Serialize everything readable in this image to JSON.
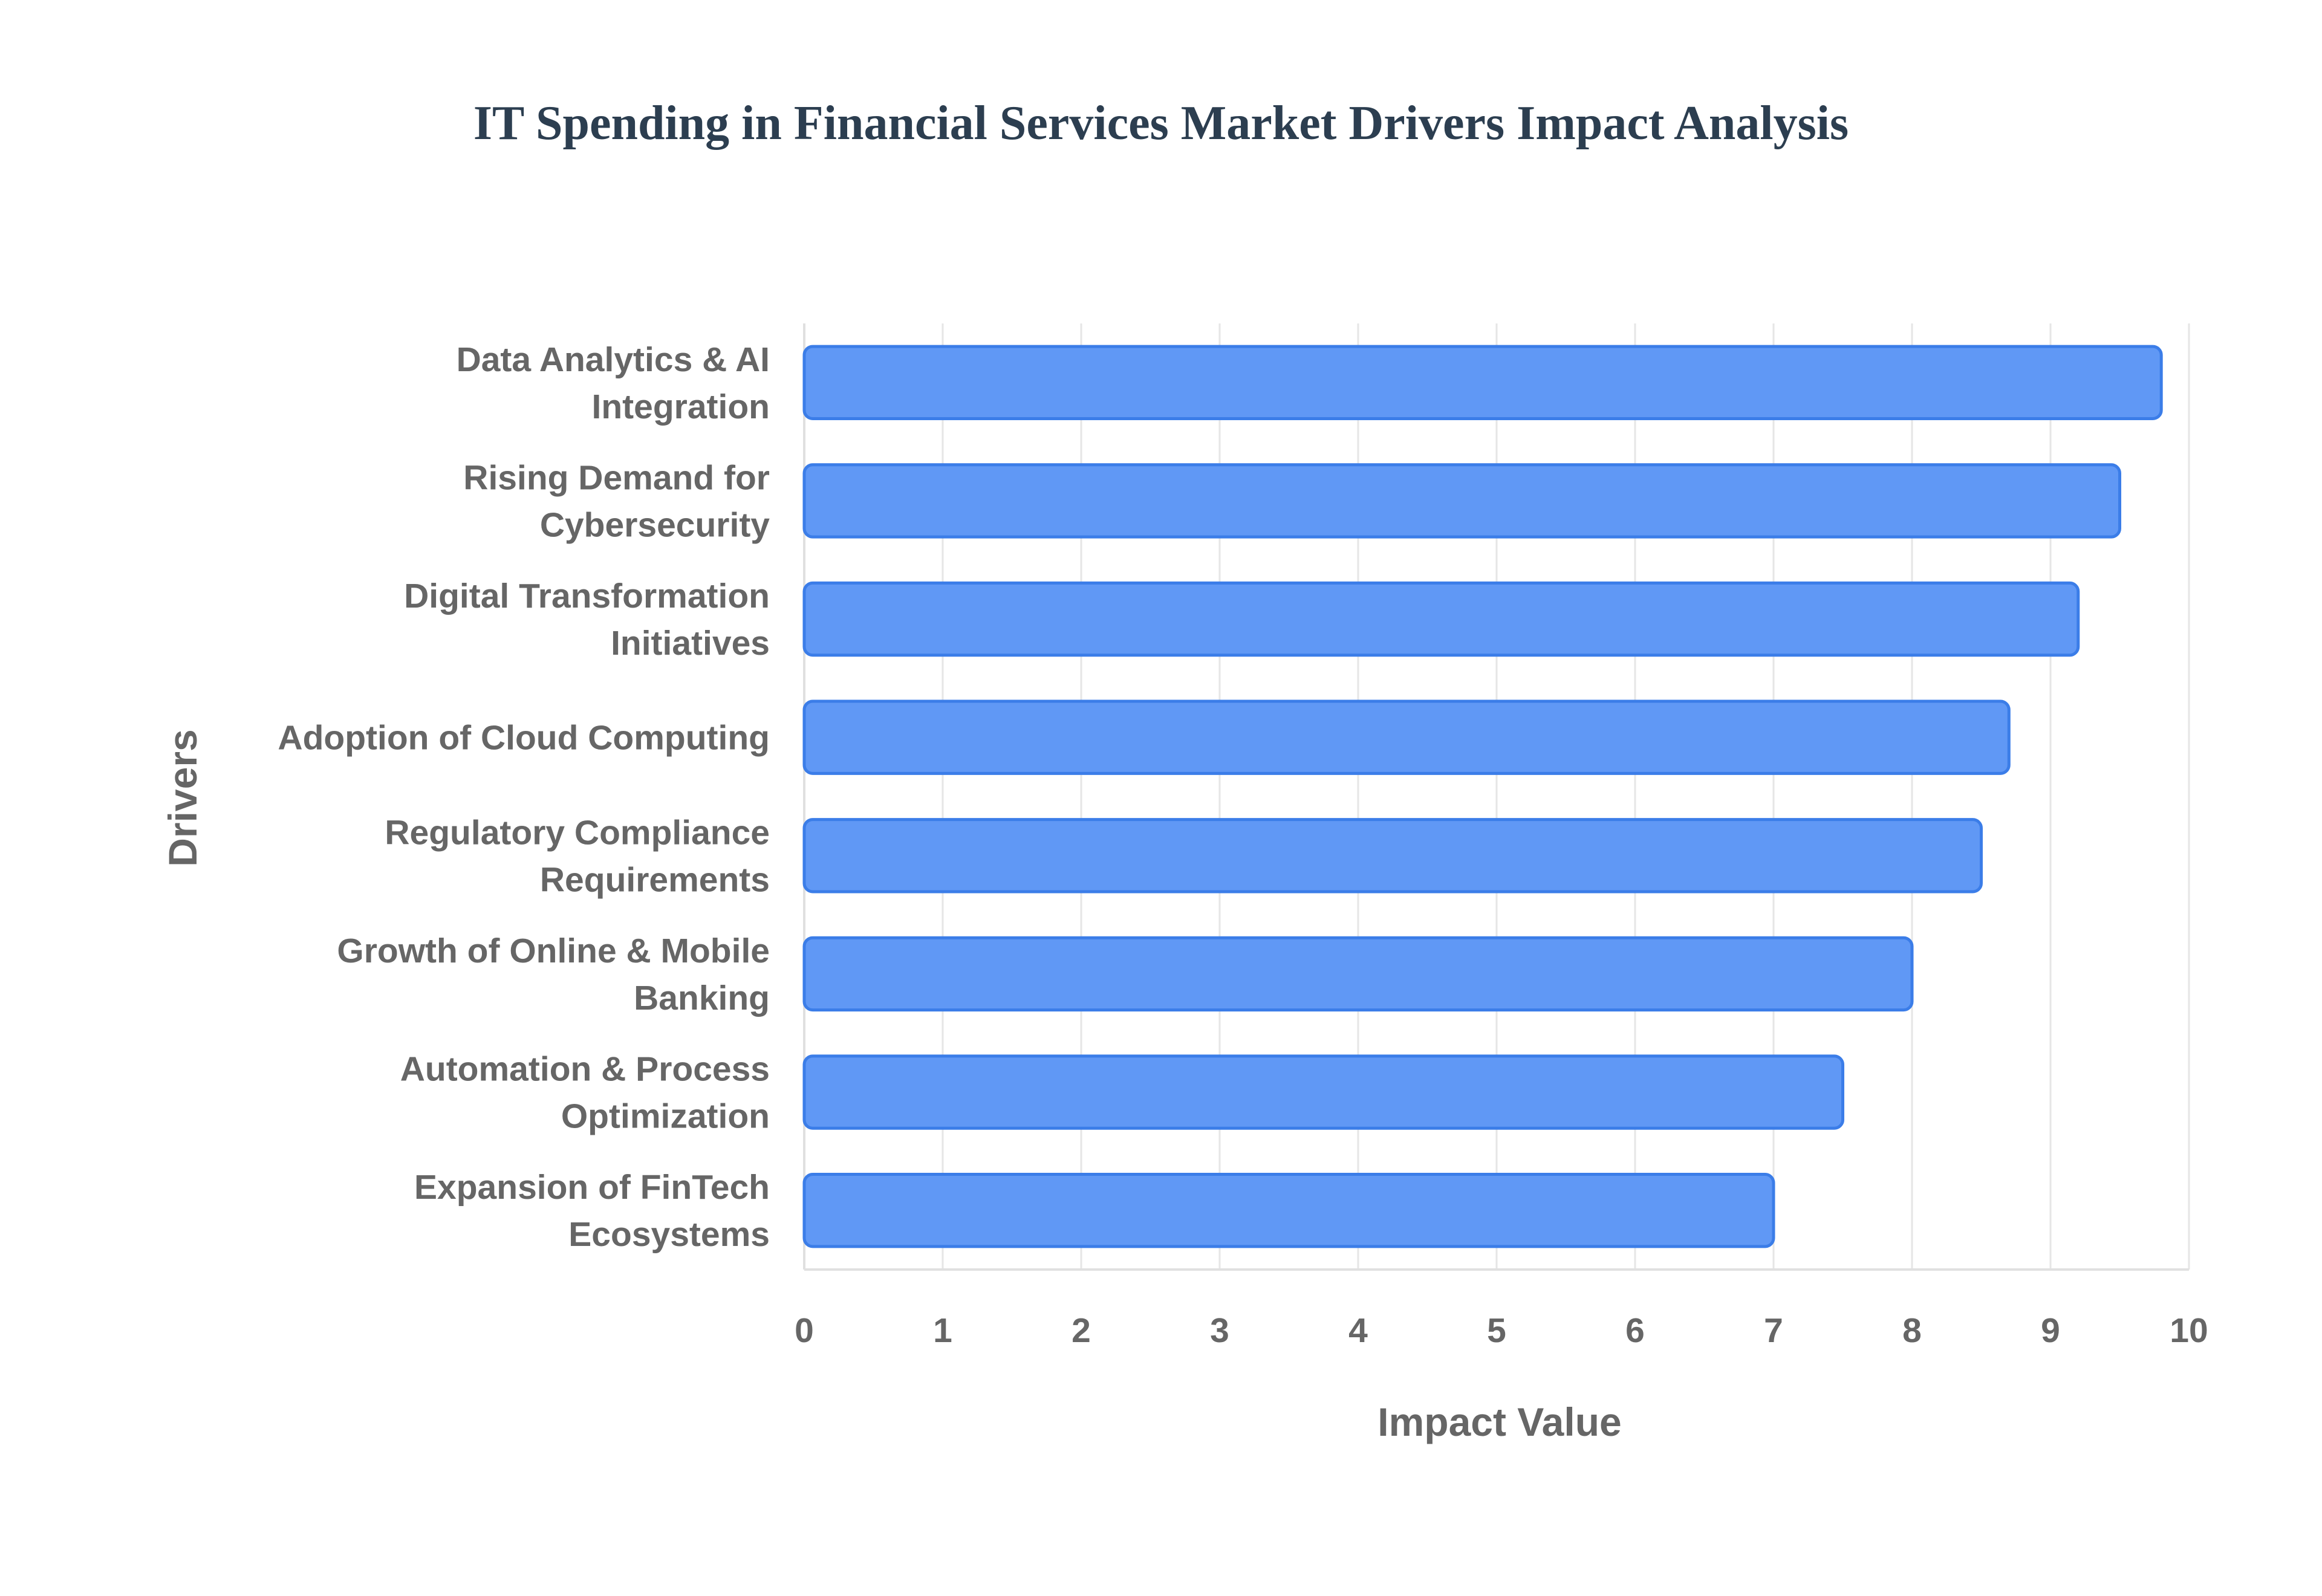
{
  "chart_data": {
    "type": "bar",
    "orientation": "horizontal",
    "title": "IT Spending in Financial Services Market Drivers Impact Analysis",
    "xlabel": "Impact Value",
    "ylabel": "Drivers",
    "xlim": [
      0,
      10
    ],
    "x_ticks": [
      "0",
      "1",
      "2",
      "3",
      "4",
      "5",
      "6",
      "7",
      "8",
      "9",
      "10"
    ],
    "grid": true,
    "categories": [
      {
        "lines": [
          "Data Analytics & AI",
          "Integration"
        ],
        "value": 9.8
      },
      {
        "lines": [
          "Rising Demand for",
          "Cybersecurity"
        ],
        "value": 9.5
      },
      {
        "lines": [
          "Digital Transformation",
          "Initiatives"
        ],
        "value": 9.2
      },
      {
        "lines": [
          "Adoption of Cloud Computing"
        ],
        "value": 8.7
      },
      {
        "lines": [
          "Regulatory Compliance",
          "Requirements"
        ],
        "value": 8.5
      },
      {
        "lines": [
          "Growth of Online & Mobile",
          "Banking"
        ],
        "value": 8.0
      },
      {
        "lines": [
          "Automation & Process",
          "Optimization"
        ],
        "value": 7.5
      },
      {
        "lines": [
          "Expansion of FinTech",
          "Ecosystems"
        ],
        "value": 7.0
      }
    ],
    "colors": {
      "bar_fill": "#6098f5",
      "bar_stroke": "#3b7de8"
    }
  }
}
